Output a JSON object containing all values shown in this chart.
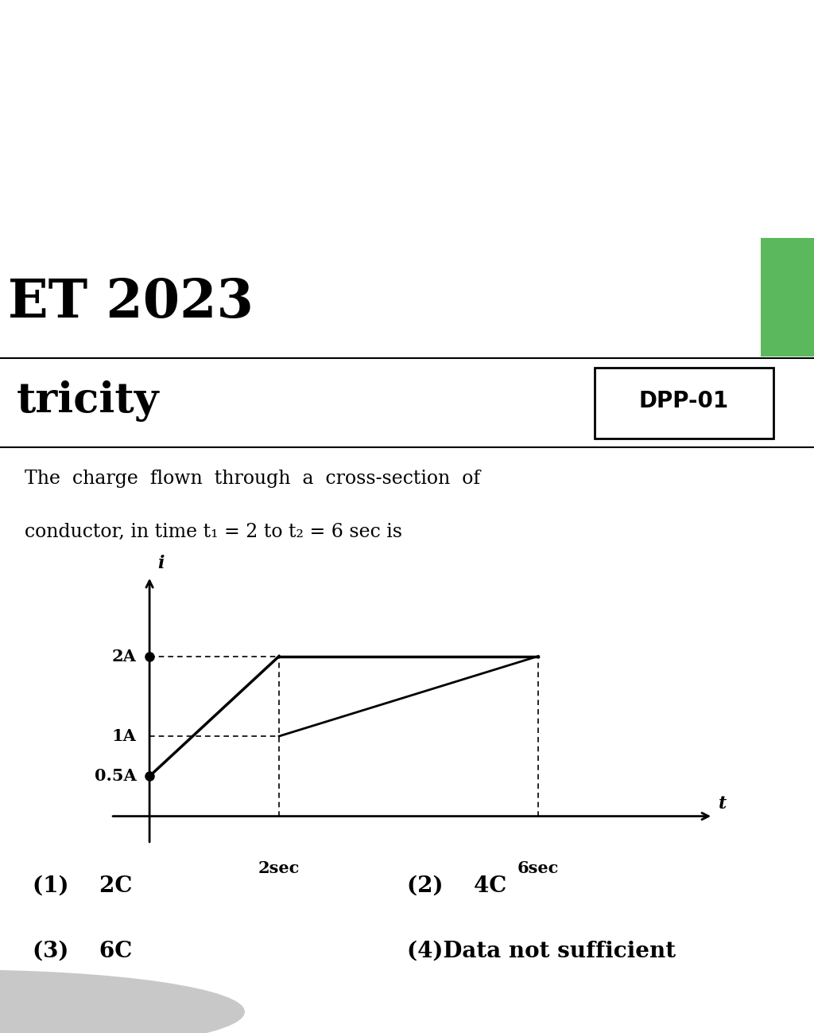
{
  "bg_top_color": "#d8d8d8",
  "bg_main_color": "#ffffff",
  "green_box_color": "#5cb85c",
  "header_text": "ET 2023",
  "subheader_left": "tricity",
  "subheader_right": "DPP-01",
  "question_line1": "The  charge  flown  through  a  cross-section  of",
  "question_line2": "conductor, in time t₁ = 2 to t₂ = 6 sec is",
  "graph_xlabel": "t",
  "graph_ylabel": "i",
  "y_labels": [
    "0.5A",
    "1A",
    "2A"
  ],
  "y_values": [
    0.5,
    1.0,
    2.0
  ],
  "x_labels": [
    "2sec",
    "6sec"
  ],
  "x_values": [
    2,
    6
  ],
  "options_left": [
    "(1)    2C",
    "(3)    6C"
  ],
  "options_right": [
    "(2)    4C",
    "(4)Data not sufficient"
  ]
}
